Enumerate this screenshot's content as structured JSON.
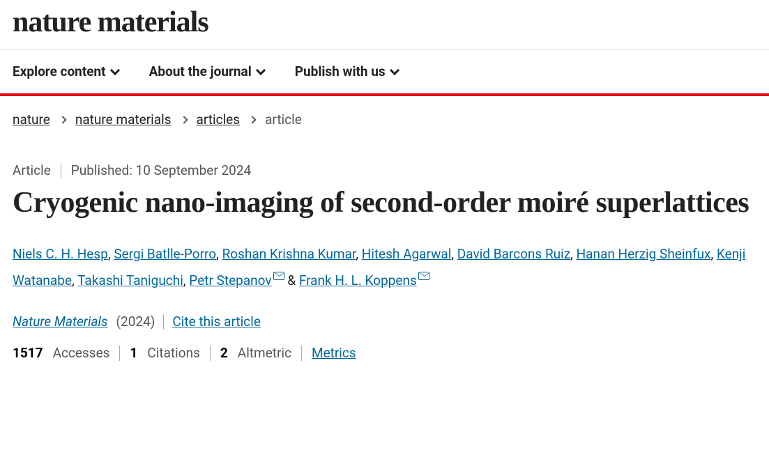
{
  "journal_brand": "nature materials",
  "nav": {
    "items": [
      {
        "label": "Explore content"
      },
      {
        "label": "About the journal"
      },
      {
        "label": "Publish with us"
      }
    ]
  },
  "breadcrumb": {
    "links": [
      {
        "label": "nature"
      },
      {
        "label": "nature materials"
      },
      {
        "label": "articles"
      }
    ],
    "current": "article"
  },
  "article": {
    "type_label": "Article",
    "published_label": "Published: 10 September 2024",
    "title": "Cryogenic nano-imaging of second-order moiré superlattices",
    "authors": [
      {
        "name": "Niels C. H. Hesp"
      },
      {
        "name": "Sergi Batlle-Porro"
      },
      {
        "name": "Roshan Krishna Kumar"
      },
      {
        "name": "Hitesh Agarwal"
      },
      {
        "name": "David Barcons Ruiz"
      },
      {
        "name": "Hanan Herzig Sheinfux"
      },
      {
        "name": "Kenji Watanabe"
      },
      {
        "name": "Takashi Taniguchi"
      },
      {
        "name": "Petr Stepanov",
        "corresponding": true
      },
      {
        "name": "Frank H. L. Koppens",
        "corresponding": true
      }
    ],
    "journal_link": "Nature Materials",
    "year": "(2024)",
    "cite_label": "Cite this article",
    "metrics": {
      "accesses": "1517",
      "accesses_label": "Accesses",
      "citations": "1",
      "citations_label": "Citations",
      "altmetric": "2",
      "altmetric_label": "Altmetric",
      "metrics_link": "Metrics"
    }
  }
}
